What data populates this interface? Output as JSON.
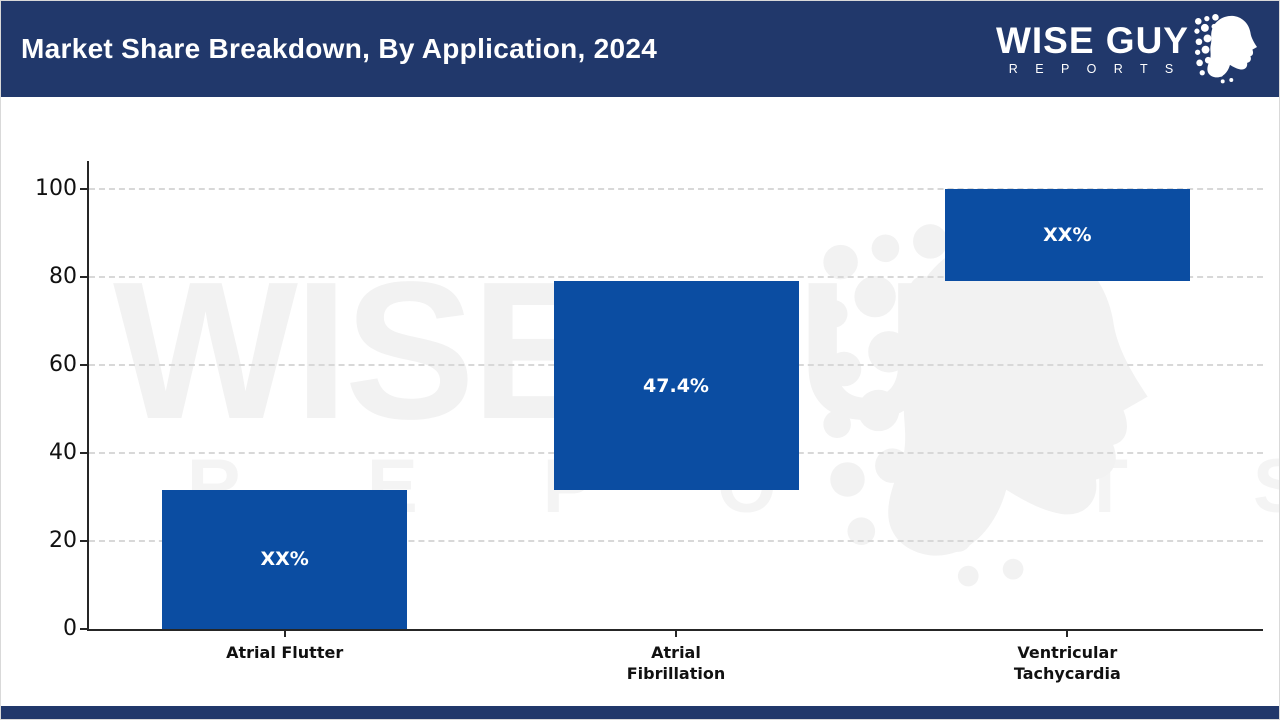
{
  "header": {
    "title": "Market Share Breakdown, By Application, 2024",
    "logo": {
      "line1": "WISE GUY",
      "line2": "R E P O R T S"
    }
  },
  "watermark": {
    "text": "WISE GUY",
    "subtext": "R E P O R T S"
  },
  "chart_data": {
    "type": "bar",
    "subtype": "waterfall",
    "title": "Market Share Breakdown, By Application, 2024",
    "categories": [
      "Atrial Flutter",
      "Atrial\nFibrillation",
      "Ventricular\nTachycardia"
    ],
    "series": [
      {
        "name": "Market Share (%)",
        "segments": [
          {
            "category": "Atrial Flutter",
            "start": 0,
            "end": 31.6,
            "label": "XX%"
          },
          {
            "category": "Atrial Fibrillation",
            "start": 31.6,
            "end": 79,
            "label": "47.4%"
          },
          {
            "category": "Ventricular Tachycardia",
            "start": 79,
            "end": 100,
            "label": "XX%"
          }
        ]
      }
    ],
    "ylim": [
      0,
      106
    ],
    "yticks": [
      0,
      20,
      40,
      60,
      80,
      100
    ],
    "grid": "horizontal-dashed",
    "legend": "none",
    "bar_color": "#0b4da2",
    "bar_label_color": "#ffffff"
  },
  "colors": {
    "header_bg": "#21386b",
    "footer_bg": "#21386b",
    "bar_blue": "#0b4da2",
    "gridline": "#d8d8d8",
    "axis": "#262626",
    "watermark_gray": "#f2f2f2"
  }
}
